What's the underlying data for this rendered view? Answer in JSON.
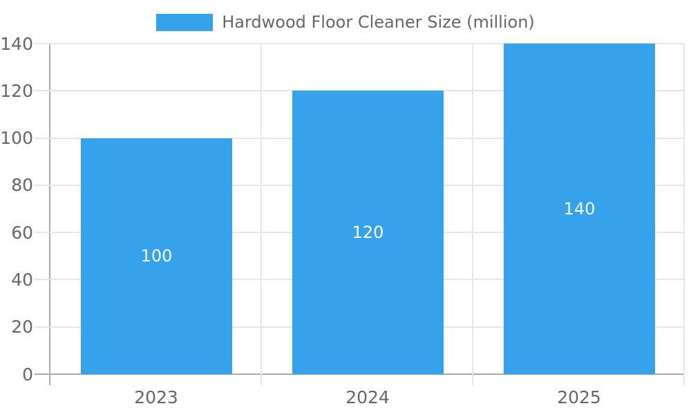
{
  "chart_data": {
    "type": "bar",
    "title": "",
    "legend": "Hardwood Floor Cleaner Size (million)",
    "legend_position": "top",
    "categories": [
      "2023",
      "2024",
      "2025"
    ],
    "series": [
      {
        "name": "Hardwood Floor Cleaner Size (million)",
        "values": [
          100,
          120,
          140
        ],
        "data_labels": [
          "100",
          "120",
          "140"
        ],
        "data_label_position": "center-of-bar",
        "color": "#36A2EB"
      }
    ],
    "xlabel": "",
    "ylabel": "",
    "ylim": [
      0,
      140
    ],
    "yticks": [
      0,
      20,
      40,
      60,
      80,
      100,
      120,
      140
    ],
    "grid": true,
    "colors": {
      "bar": "#36A2EB",
      "grid": "#E6E6E6",
      "axis": "#AAAAAA",
      "text": "#666666",
      "data_label": "#FFFFFF",
      "background": "#FFFFFF"
    }
  }
}
